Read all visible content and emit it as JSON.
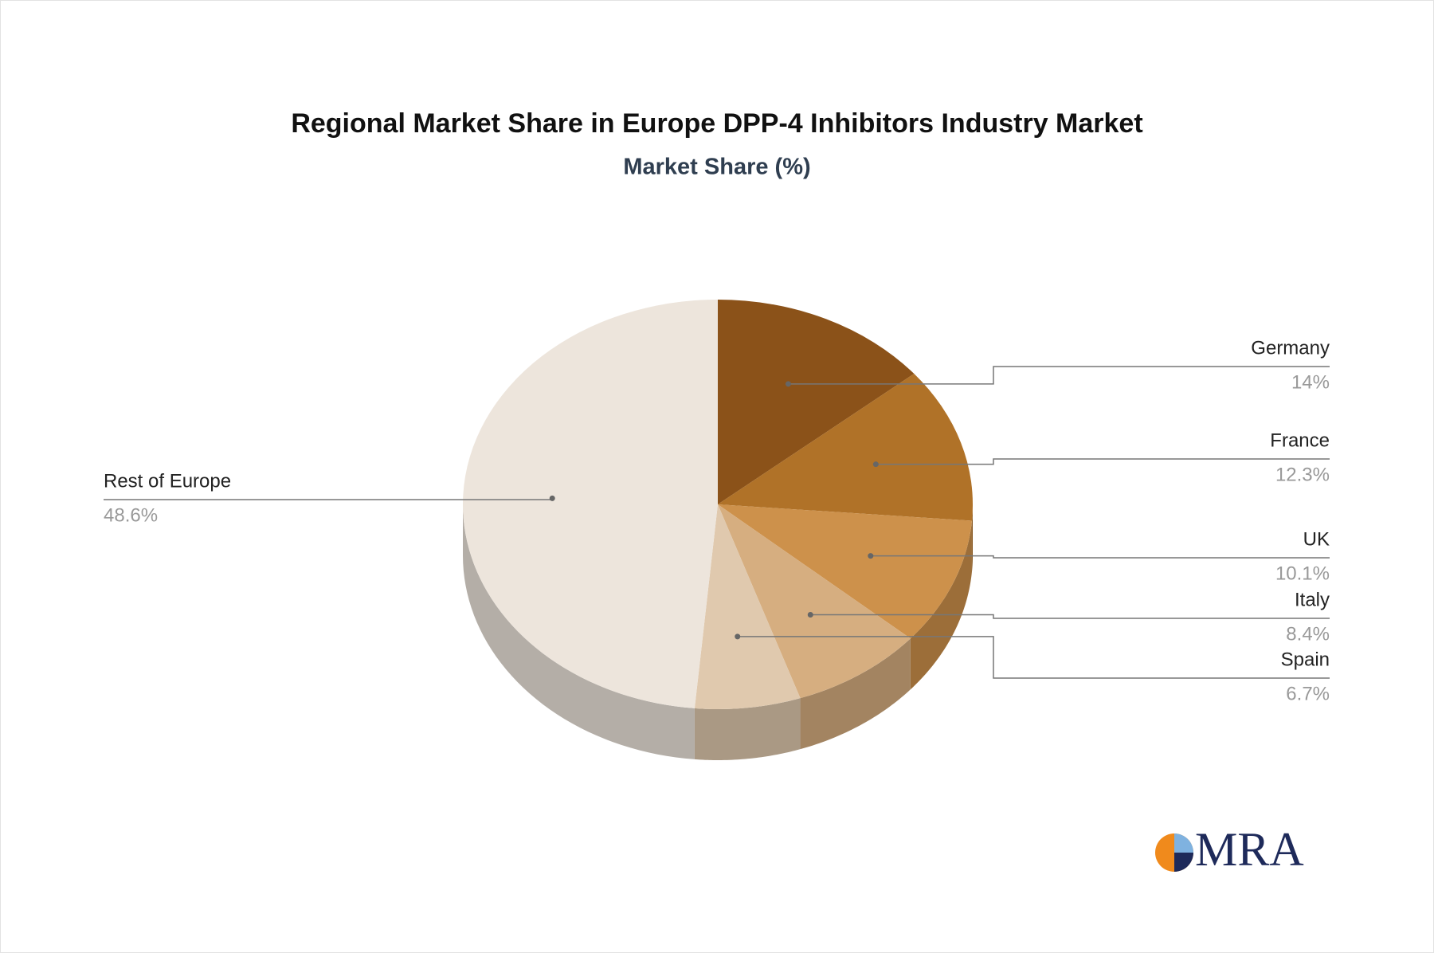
{
  "chart_data": {
    "type": "pie",
    "title": "Regional Market Share in Europe DPP-4 Inhibitors Industry Market",
    "subtitle": "Market Share (%)",
    "categories": [
      "Germany",
      "France",
      "UK",
      "Italy",
      "Spain",
      "Rest of Europe"
    ],
    "values": [
      14,
      12.3,
      10.1,
      8.4,
      6.7,
      48.6
    ],
    "value_labels": [
      "14%",
      "12.3%",
      "10.1%",
      "8.4%",
      "6.7%",
      "48.6%"
    ],
    "colors": [
      "#8b5219",
      "#b07228",
      "#cd914b",
      "#d6ae80",
      "#e0c9ae",
      "#ede5dc"
    ]
  },
  "logo": "MRA"
}
